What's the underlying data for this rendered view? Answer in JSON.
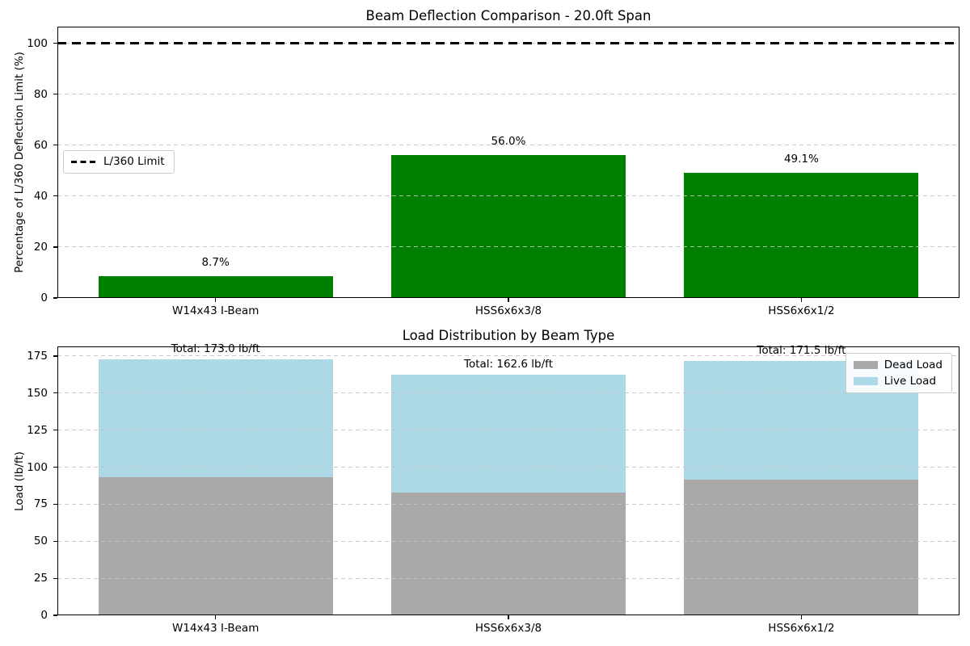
{
  "figure": {
    "background": "#ffffff"
  },
  "chart_data": [
    {
      "type": "bar",
      "title": "Beam Deflection Comparison - 20.0ft Span",
      "xlabel": "",
      "ylabel": "Percentage of L/360 Deflection Limit (%)",
      "categories": [
        "W14x43 I-Beam",
        "HSS6x6x3/8",
        "HSS6x6x1/2"
      ],
      "values": [
        8.7,
        56.0,
        49.1
      ],
      "bar_labels": [
        "8.7%",
        "56.0%",
        "49.1%"
      ],
      "bar_color": "#008000",
      "yticks": [
        0,
        20,
        40,
        60,
        80,
        100
      ],
      "ylim": [
        0,
        106.5
      ],
      "grid": true,
      "grid_color": "#c8c8c8",
      "reference_line": {
        "value": 100,
        "style": "dashed",
        "color": "#000000"
      },
      "legend_label": "L/360 Limit",
      "legend_position": "center-left"
    },
    {
      "type": "bar",
      "stacked": true,
      "title": "Load Distribution by Beam Type",
      "xlabel": "",
      "ylabel": "Load (lb/ft)",
      "categories": [
        "W14x43 I-Beam",
        "HSS6x6x3/8",
        "HSS6x6x1/2"
      ],
      "series": [
        {
          "name": "Dead Load",
          "color": "#a9a9a9",
          "values": [
            93.0,
            82.6,
            91.5
          ]
        },
        {
          "name": "Live Load",
          "color": "#add8e6",
          "values": [
            80.0,
            80.0,
            80.0
          ]
        }
      ],
      "totals": [
        "Total: 173.0 lb/ft",
        "Total: 162.6 lb/ft",
        "Total: 171.5 lb/ft"
      ],
      "yticks": [
        0,
        25,
        50,
        75,
        100,
        125,
        150,
        175
      ],
      "ylim": [
        0,
        181.5
      ],
      "grid": true,
      "grid_color": "#c8c8c8",
      "legend_position": "upper-right"
    }
  ]
}
